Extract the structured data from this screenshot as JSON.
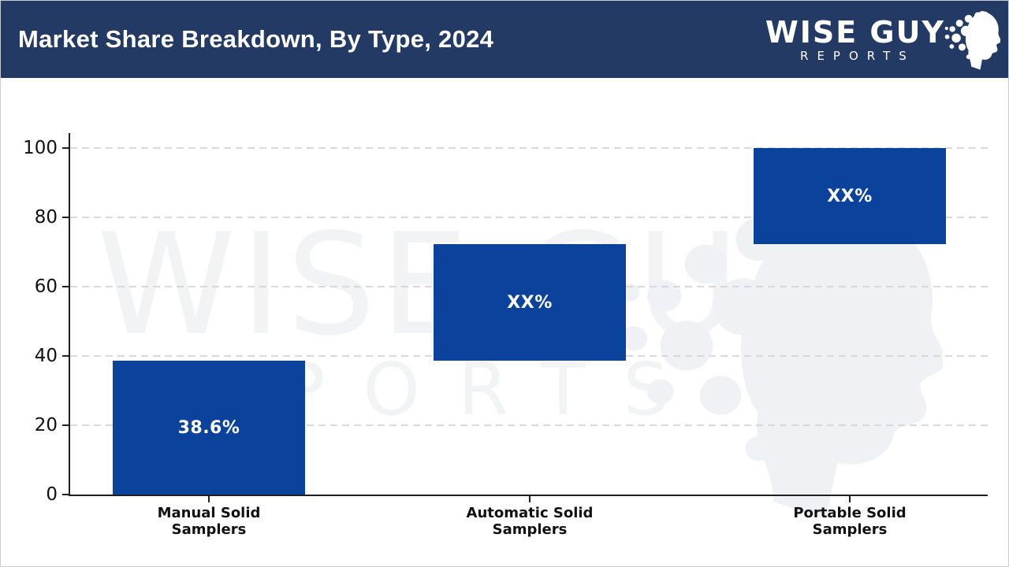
{
  "header": {
    "title": "Market Share Breakdown, By Type, 2024",
    "bg_color": "#233A64",
    "logo": {
      "line1": "WISE GUY",
      "line2": "REPORTS"
    }
  },
  "watermark": {
    "line1": "WISE GUY",
    "line2": "REPORTS"
  },
  "chart_data": {
    "type": "bar",
    "subtype": "waterfall",
    "title": "Market Share Breakdown, By Type, 2024",
    "categories": [
      "Manual Solid\nSamplers",
      "Automatic Solid\nSamplers",
      "Portable Solid\nSamplers"
    ],
    "series": [
      {
        "name": "Market Share (%)",
        "segments": [
          {
            "category": "Manual Solid Samplers",
            "start": 0,
            "end": 38.6,
            "label": "38.6%"
          },
          {
            "category": "Automatic Solid Samplers",
            "start": 38.6,
            "end": 72.3,
            "label": "XX%"
          },
          {
            "category": "Portable Solid Samplers",
            "start": 72.3,
            "end": 100,
            "label": "XX%"
          }
        ]
      }
    ],
    "ylim": [
      0,
      100
    ],
    "yticks": [
      0,
      20,
      40,
      60,
      80,
      100
    ],
    "xlabel": "",
    "ylabel": "",
    "grid": "horizontal-dashed",
    "legend": "none",
    "bar_color": "#0B429C",
    "bar_label_color": "#FFFFFF",
    "grid_color": "#D9D9D9",
    "axis_color": "#1F1F1F"
  }
}
